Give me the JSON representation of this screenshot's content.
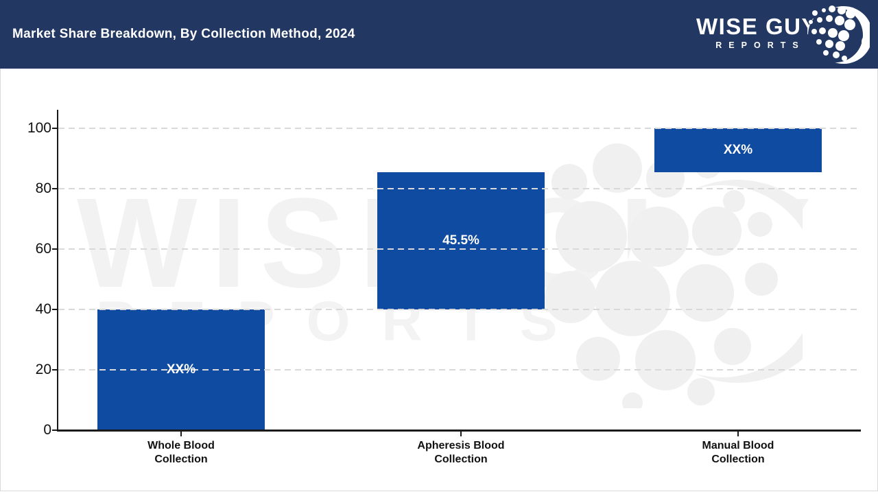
{
  "header": {
    "title": "Market Share Breakdown, By Collection Method, 2024",
    "brand": {
      "line1": "WISE GUY",
      "line2": "REPORTS"
    }
  },
  "watermark": {
    "line1": "WISE GUY",
    "line2": "REPORTS"
  },
  "colors": {
    "header_bg": "#223863",
    "bar": "#0e4ba1",
    "grid": "#d9d9d9",
    "axis": "#1a1a1a",
    "watermark": "#f2f2f2",
    "value_label": "#ffffff"
  },
  "chart_data": {
    "type": "bar",
    "subtype": "waterfall",
    "title": "Market Share Breakdown, By Collection Method, 2024",
    "categories": [
      "Whole Blood Collection",
      "Apheresis Blood Collection",
      "Manual Blood Collection"
    ],
    "category_lines": [
      [
        "Whole Blood",
        "Collection"
      ],
      [
        "Apheresis Blood",
        "Collection"
      ],
      [
        "Manual Blood",
        "Collection"
      ]
    ],
    "segments": [
      {
        "category": "Whole Blood Collection",
        "start": 0,
        "end": 40,
        "value_label": "XX%"
      },
      {
        "category": "Apheresis Blood Collection",
        "start": 40,
        "end": 85.5,
        "value_label": "45.5%",
        "value": 45.5
      },
      {
        "category": "Manual Blood Collection",
        "start": 85.5,
        "end": 100,
        "value_label": "XX%"
      }
    ],
    "xlabel": "",
    "ylabel": "",
    "yticks": [
      0,
      20,
      40,
      60,
      80,
      100
    ],
    "ylim": [
      0,
      106
    ],
    "grid": {
      "horizontal": true,
      "style": "dashed"
    },
    "legend": "none",
    "bar_color": "#0e4ba1",
    "value_label_color": "#ffffff"
  }
}
